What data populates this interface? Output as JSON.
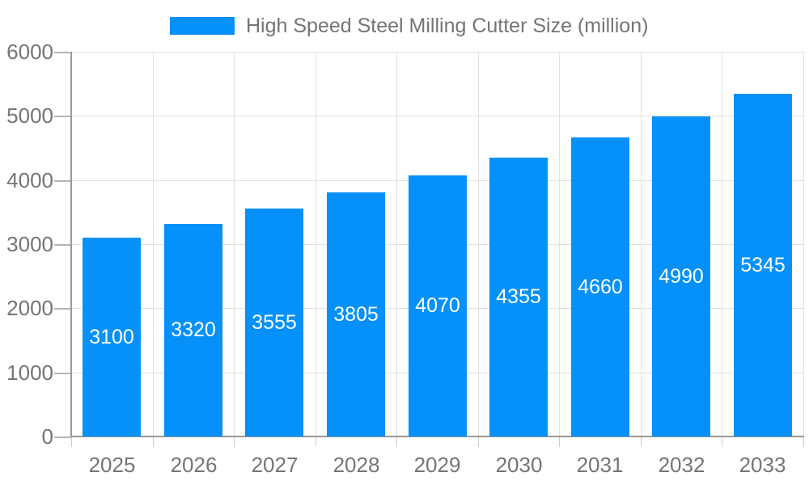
{
  "legend": {
    "label": "High Speed Steel Milling Cutter Size (million)"
  },
  "colors": {
    "bar": "#0591f9",
    "grid": "#e0e0e0",
    "axis": "#999999",
    "y_tick": "#b5b5b5",
    "x_tick": "#cccccc",
    "axis_label_text": "#757575",
    "legend_text": "#757575",
    "bar_value_text": "#ffffff",
    "background": "#ffffff"
  },
  "chart_data": {
    "type": "bar",
    "title": "High Speed Steel Milling Cutter Size (million)",
    "categories": [
      "2025",
      "2026",
      "2027",
      "2028",
      "2029",
      "2030",
      "2031",
      "2032",
      "2033"
    ],
    "values": [
      3100,
      3320,
      3555,
      3805,
      4070,
      4355,
      4660,
      4990,
      5345
    ],
    "series_name": "High Speed Steel Milling Cutter Size (million)",
    "xlabel": "",
    "ylabel": "",
    "ylim": [
      0,
      6000
    ],
    "ytick_step": 1000,
    "ytick_labels": [
      "0",
      "1000",
      "2000",
      "3000",
      "4000",
      "5000",
      "6000"
    ],
    "grid": true,
    "legend_position": "top-center",
    "value_label_position": "inside-center"
  }
}
